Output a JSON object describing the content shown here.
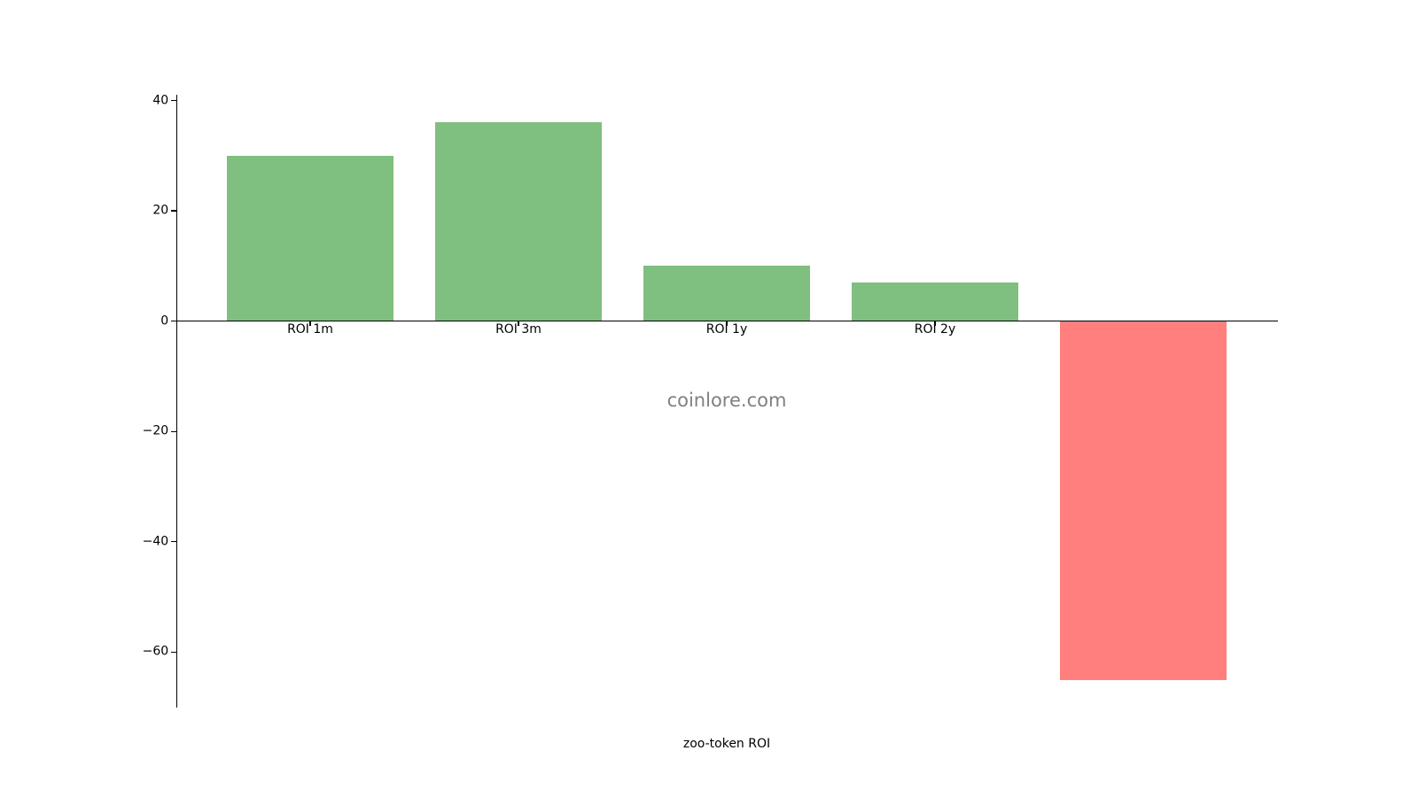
{
  "chart_data": {
    "type": "bar",
    "title": "",
    "xlabel": "zoo-token ROI",
    "ylabel": "",
    "watermark": "coinlore.com",
    "categories": [
      "ROI 1m",
      "ROI 3m",
      "ROI 1y",
      "ROI 2y",
      ""
    ],
    "values": [
      30,
      36,
      10,
      7,
      -65
    ],
    "positive_color": "#7fbf7f",
    "negative_color": "#ff7f7f",
    "yticks": [
      40,
      20,
      0,
      -20,
      -40,
      -60
    ],
    "ytick_labels": [
      "40",
      "20",
      "0",
      "−20",
      "−40",
      "−60"
    ],
    "ylim": [
      -70.05,
      41.05
    ],
    "grid": false,
    "legend": false,
    "axis_color": "#000000",
    "watermark_color": "#808080",
    "background": "#ffffff"
  }
}
